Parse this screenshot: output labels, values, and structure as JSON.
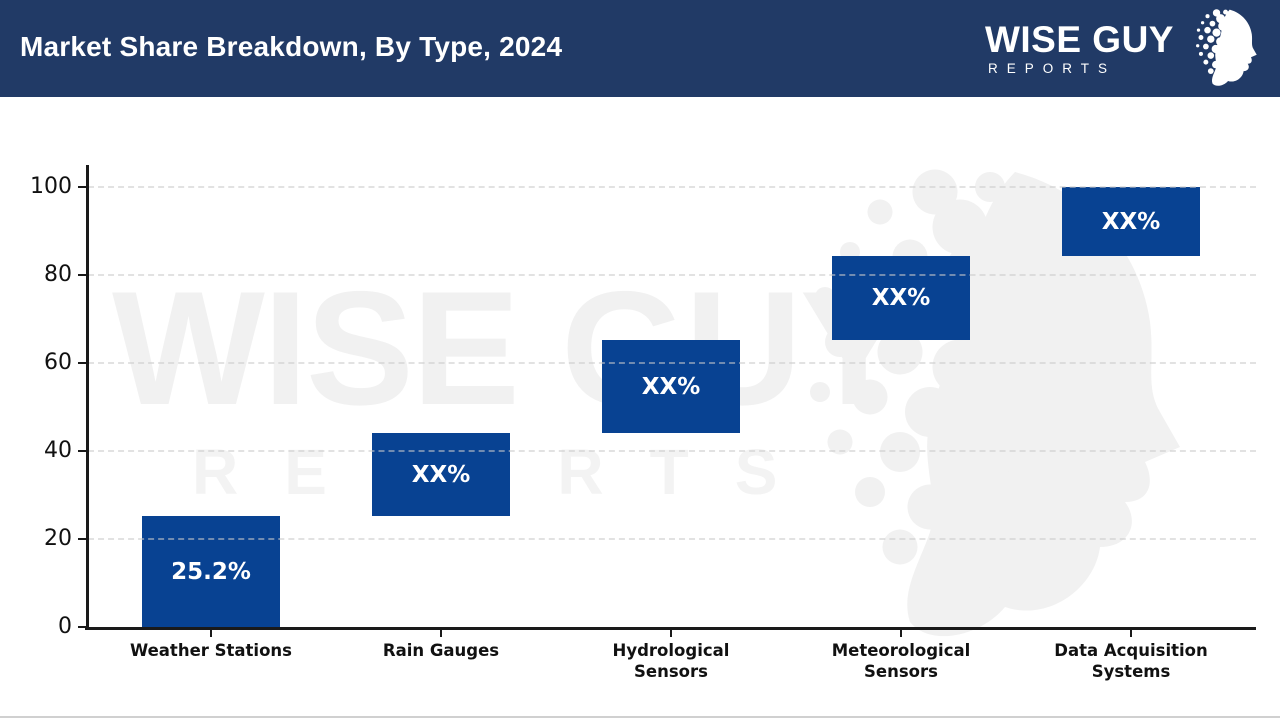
{
  "header": {
    "title": "Market Share Breakdown, By Type, 2024",
    "logo": {
      "brand": "WISE GUY",
      "sub": "REPORTS",
      "icon": "face-profile-dots-icon"
    }
  },
  "watermark": {
    "brand": "WISE GUY",
    "sub": "REPORTS",
    "icon": "face-profile-dots-graphic"
  },
  "colors": {
    "header_bg": "#213a66",
    "bar": "#084292",
    "bar_label_text": "#ffffff",
    "axis": "#1a1a1a",
    "grid_dash": "#cbcbcb",
    "watermark": "#f1f1f1",
    "tick_text": "#111111"
  },
  "chart_data": {
    "type": "bar",
    "subtype": "waterfall-step",
    "title": "Market Share Breakdown, By Type, 2024",
    "xlabel": "",
    "ylabel": "",
    "ylim": [
      0,
      100
    ],
    "yticks": [
      0,
      20,
      40,
      60,
      80,
      100
    ],
    "grid": "horizontal dashed",
    "legend": "none",
    "categories": [
      "Weather Stations",
      "Rain Gauges",
      "Hydrological\nSensors",
      "Meteorological\nSensors",
      "Data Acquisition\nSystems"
    ],
    "segments": [
      {
        "category": "Weather Stations",
        "start": 0,
        "end": 25.2,
        "value": 25.2,
        "label": "25.2%"
      },
      {
        "category": "Rain Gauges",
        "start": 25.2,
        "end": 44.0,
        "value": 18.8,
        "label": "XX%"
      },
      {
        "category": "Hydrological Sensors",
        "start": 44.0,
        "end": 65.2,
        "value": 21.2,
        "label": "XX%"
      },
      {
        "category": "Meteorological Sensors",
        "start": 65.2,
        "end": 84.3,
        "value": 19.1,
        "label": "XX%"
      },
      {
        "category": "Data Acquisition Systems",
        "start": 84.3,
        "end": 100,
        "value": 15.7,
        "label": "XX%"
      }
    ]
  }
}
